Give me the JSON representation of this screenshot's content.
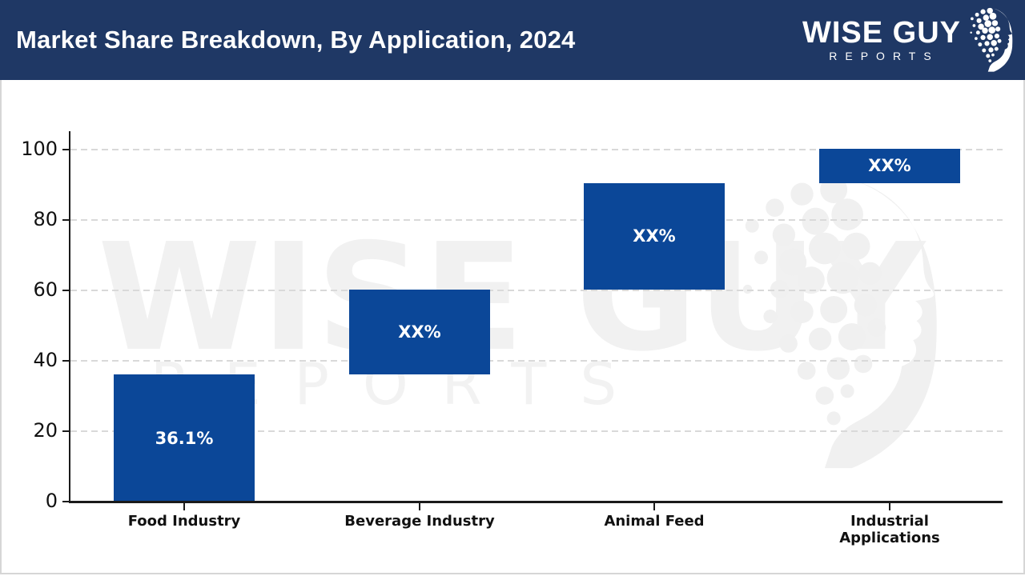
{
  "header": {
    "title": "Market Share Breakdown, By Application, 2024",
    "logo": {
      "line1": "WISE GUY",
      "line2": "REPORTS"
    }
  },
  "watermark": {
    "line1": "WISE GUY",
    "line2": "REPORTS"
  },
  "colors": {
    "header_bg": "#1f3865",
    "bar": "#0b4798",
    "bar_label": "#ffffff",
    "axis": "#1a1a1a",
    "gridline": "#d9d9d9",
    "tick_text": "#111111",
    "watermark": "#f1f1f1"
  },
  "chart_data": {
    "type": "bar",
    "variant": "waterfall",
    "title": "Market Share Breakdown, By Application, 2024",
    "categories": [
      "Food Industry",
      "Beverage Industry",
      "Animal Feed",
      "Industrial\nApplications"
    ],
    "bars": [
      {
        "category": "Food Industry",
        "start": 0,
        "end": 36.1,
        "label": "36.1%"
      },
      {
        "category": "Beverage Industry",
        "start": 36.1,
        "end": 60.3,
        "label": "XX%"
      },
      {
        "category": "Animal Feed",
        "start": 60.3,
        "end": 90.5,
        "label": "XX%"
      },
      {
        "category": "Industrial Applications",
        "start": 90.5,
        "end": 100.3,
        "label": "XX%"
      }
    ],
    "yticks": [
      0,
      20,
      40,
      60,
      80,
      100
    ],
    "ylim": [
      0,
      105
    ],
    "ylabel": "",
    "xlabel": "",
    "grid": "horizontal-dashed",
    "legend": "none"
  }
}
